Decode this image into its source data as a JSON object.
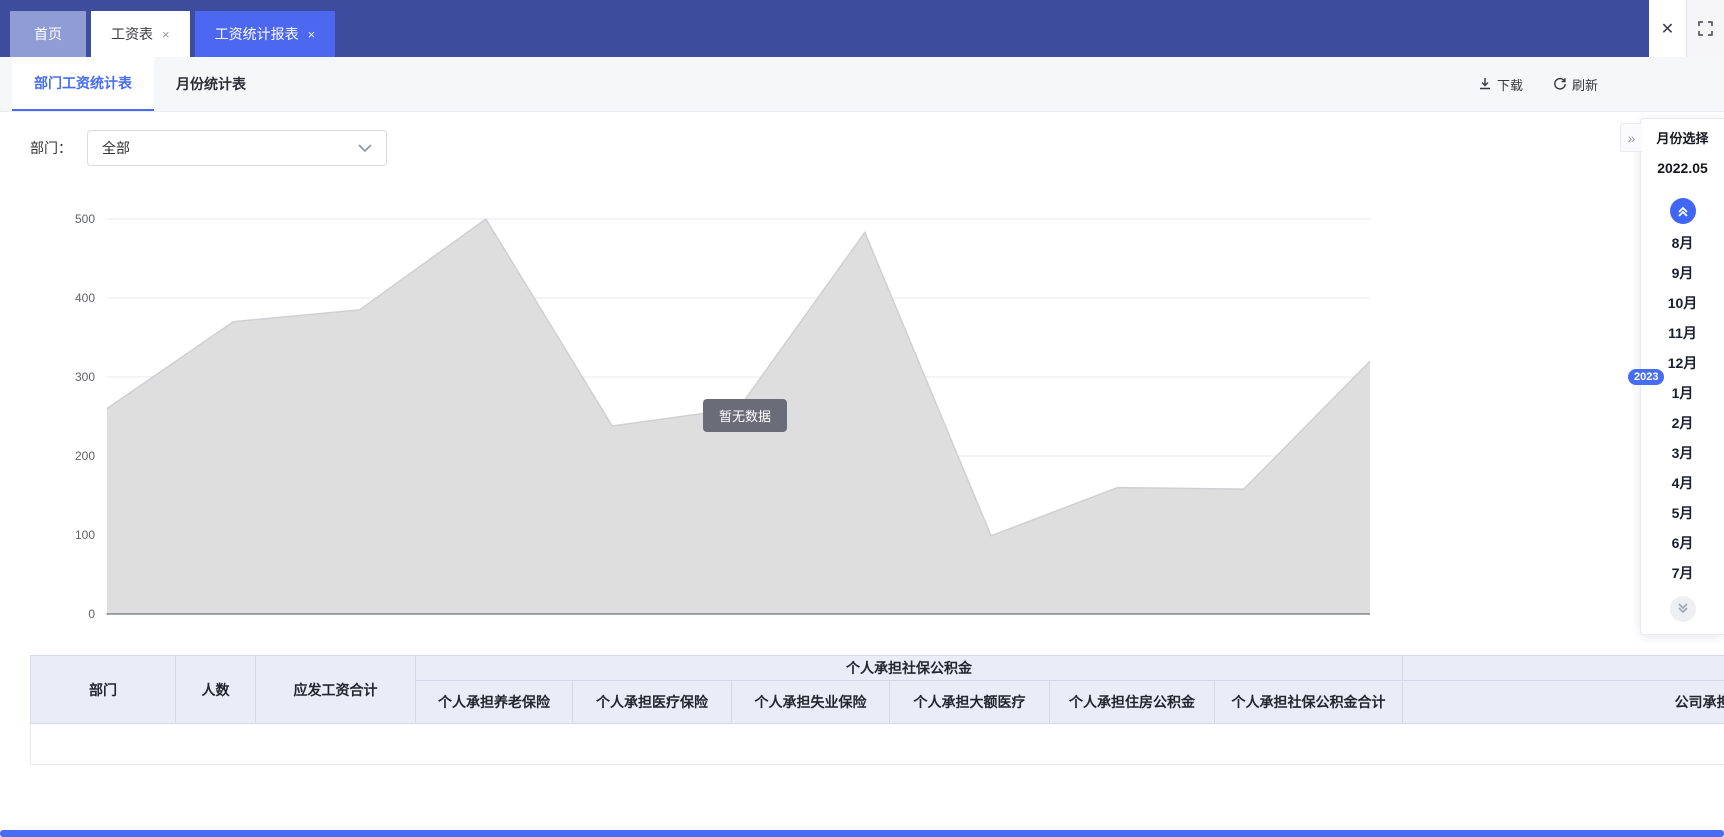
{
  "window": {
    "close_icon": "✕"
  },
  "topbar": {
    "home_tab": "首页",
    "tabs": [
      {
        "label": "工资表"
      },
      {
        "label": "工资统计报表"
      }
    ],
    "tab_close": "×"
  },
  "toolbar": {
    "tab_dept": "部门工资统计表",
    "tab_month": "月份统计表",
    "download": "下载",
    "refresh": "刷新"
  },
  "filter": {
    "label": "部门：",
    "value": "全部"
  },
  "chart_data": {
    "type": "area",
    "title": "",
    "x": [
      1,
      2,
      3,
      4,
      5,
      6,
      7,
      8,
      9,
      10,
      11
    ],
    "x_ticklabels": [],
    "values": [
      260,
      370,
      385,
      500,
      238,
      260,
      483,
      99,
      160,
      158,
      320
    ],
    "ylim": [
      0,
      500
    ],
    "yticks": [
      0,
      100,
      200,
      300,
      400,
      500
    ],
    "grid": true,
    "legend": false,
    "fill_color": "#dcdcdc",
    "line_color": "#d0d0d4",
    "no_data_label": "暂无数据"
  },
  "month_panel": {
    "collapse": "»",
    "title": "月份选择",
    "current": "2022.05",
    "months": [
      "8月",
      "9月",
      "10月",
      "11月",
      "12月",
      "1月",
      "2月",
      "3月",
      "4月",
      "5月",
      "6月",
      "7月"
    ],
    "year_badge": "2023"
  },
  "table": {
    "headers": {
      "dept": "部门",
      "count": "人数",
      "total": "应发工资合计",
      "group": "个人承担社保公积金",
      "subs": [
        "个人承担养老保险",
        "个人承担医疗保险",
        "个人承担失业保险",
        "个人承担大额医疗",
        "个人承担住房公积金",
        "个人承担社保公积金合计"
      ],
      "company": "公司承担"
    }
  },
  "colors": {
    "topbar": "#3e4c9e",
    "active_window_tab": "#4c67f0",
    "accent": "#476df5",
    "table_header_bg": "#e9edf8",
    "chart_fill": "#dcdcdc",
    "tooltip_bg": "#6a6d78"
  }
}
